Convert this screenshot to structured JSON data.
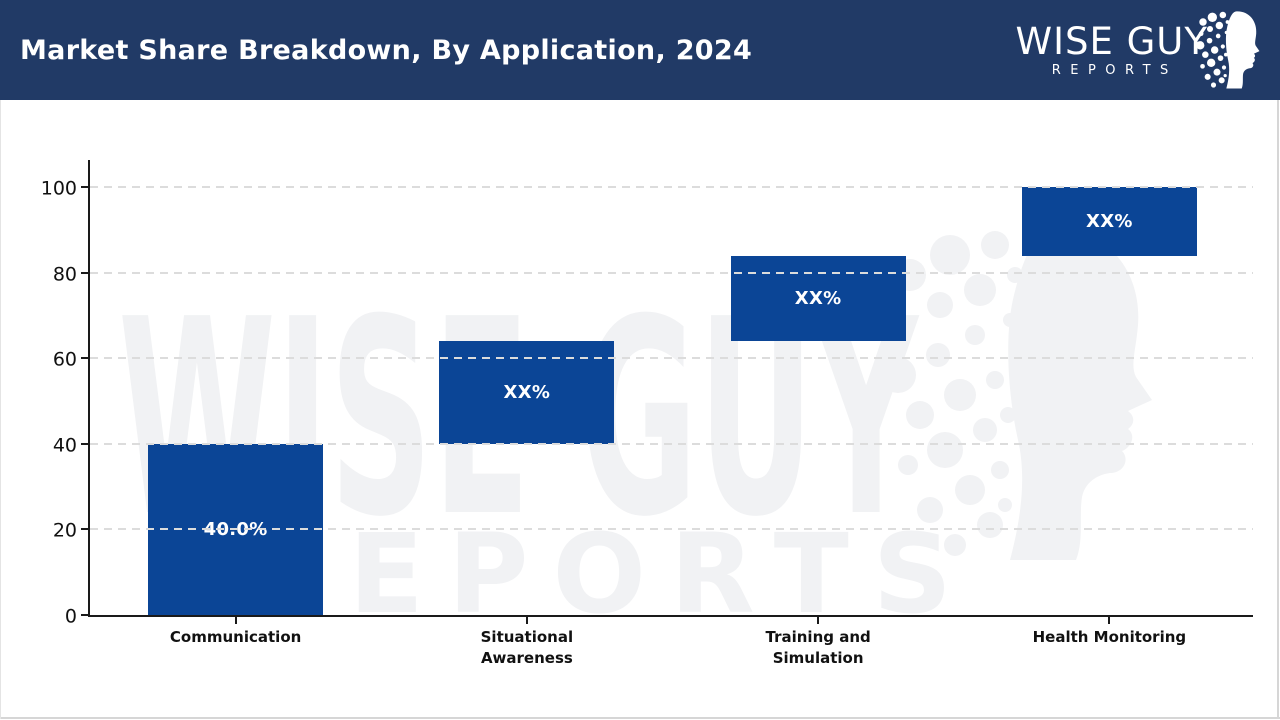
{
  "header": {
    "title": "Market Share Breakdown, By Application, 2024",
    "logo": {
      "line1": "WISE GUY",
      "line2": "REPORTS"
    }
  },
  "colors": {
    "header_bg": "#213a66",
    "bar": "#0b4596",
    "grid": "#dcdcdc",
    "axis": "#1a1a1a",
    "watermark": "#f1f2f4",
    "hairline": "#d6d6d6",
    "on_bar_text": "#ffffff",
    "text": "#111111"
  },
  "chart_data": {
    "type": "bar",
    "subtype": "waterfall",
    "title": "Market Share Breakdown, By Application, 2024",
    "categories": [
      "Communication",
      "Situational\nAwareness",
      "Training and\nSimulation",
      "Health Monitoring"
    ],
    "segments": [
      {
        "category": "Communication",
        "start": 0,
        "end": 40,
        "value": 40,
        "label": "40.0%"
      },
      {
        "category": "Situational Awareness",
        "start": 40,
        "end": 64,
        "value": 24,
        "label": "XX%"
      },
      {
        "category": "Training and Simulation",
        "start": 64,
        "end": 84,
        "value": 20,
        "label": "XX%"
      },
      {
        "category": "Health Monitoring",
        "start": 84,
        "end": 100,
        "value": 16,
        "label": "XX%"
      }
    ],
    "yticks": [
      0,
      20,
      40,
      60,
      80,
      100
    ],
    "ylim": [
      0,
      106.8
    ],
    "xlabel": "",
    "ylabel": "",
    "grid": "horizontal-dashed-over-bars",
    "legend": "none",
    "watermark_line1": "WISE GUY",
    "watermark_line2": "REPORTS"
  }
}
